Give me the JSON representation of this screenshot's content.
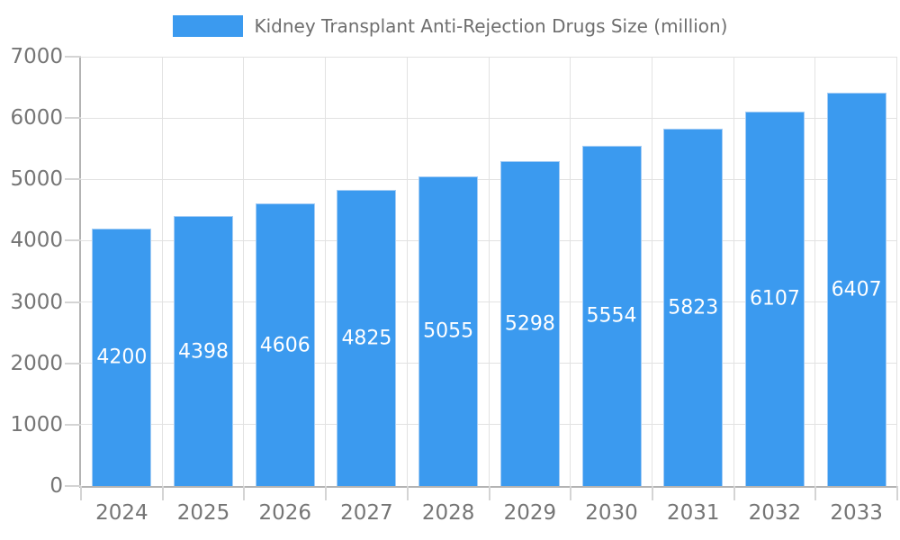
{
  "chart_data": {
    "type": "bar",
    "title": "Kidney Transplant Anti-Rejection Drugs Size (million)",
    "xlabel": "",
    "ylabel": "",
    "categories": [
      "2024",
      "2025",
      "2026",
      "2027",
      "2028",
      "2029",
      "2030",
      "2031",
      "2032",
      "2033"
    ],
    "values": [
      4200,
      4398,
      4606,
      4825,
      5055,
      5298,
      5554,
      5823,
      6107,
      6407
    ],
    "value_labels_visible": true,
    "ylim": [
      0,
      7000
    ],
    "yticks": [
      0,
      1000,
      2000,
      3000,
      4000,
      5000,
      6000,
      7000
    ],
    "grid": true,
    "legend_position": "top-center",
    "colors": {
      "bar_fill": "#3B9AEF",
      "bar_border": "#A5CDF5",
      "grid": "#E2E2E2",
      "axis": "#B3B3B3",
      "tick": "#D4D4D4",
      "label_text": "#757575",
      "title_text": "#6E6E6E",
      "value_text": "#FFFFFF",
      "background": "#FFFFFF"
    }
  }
}
